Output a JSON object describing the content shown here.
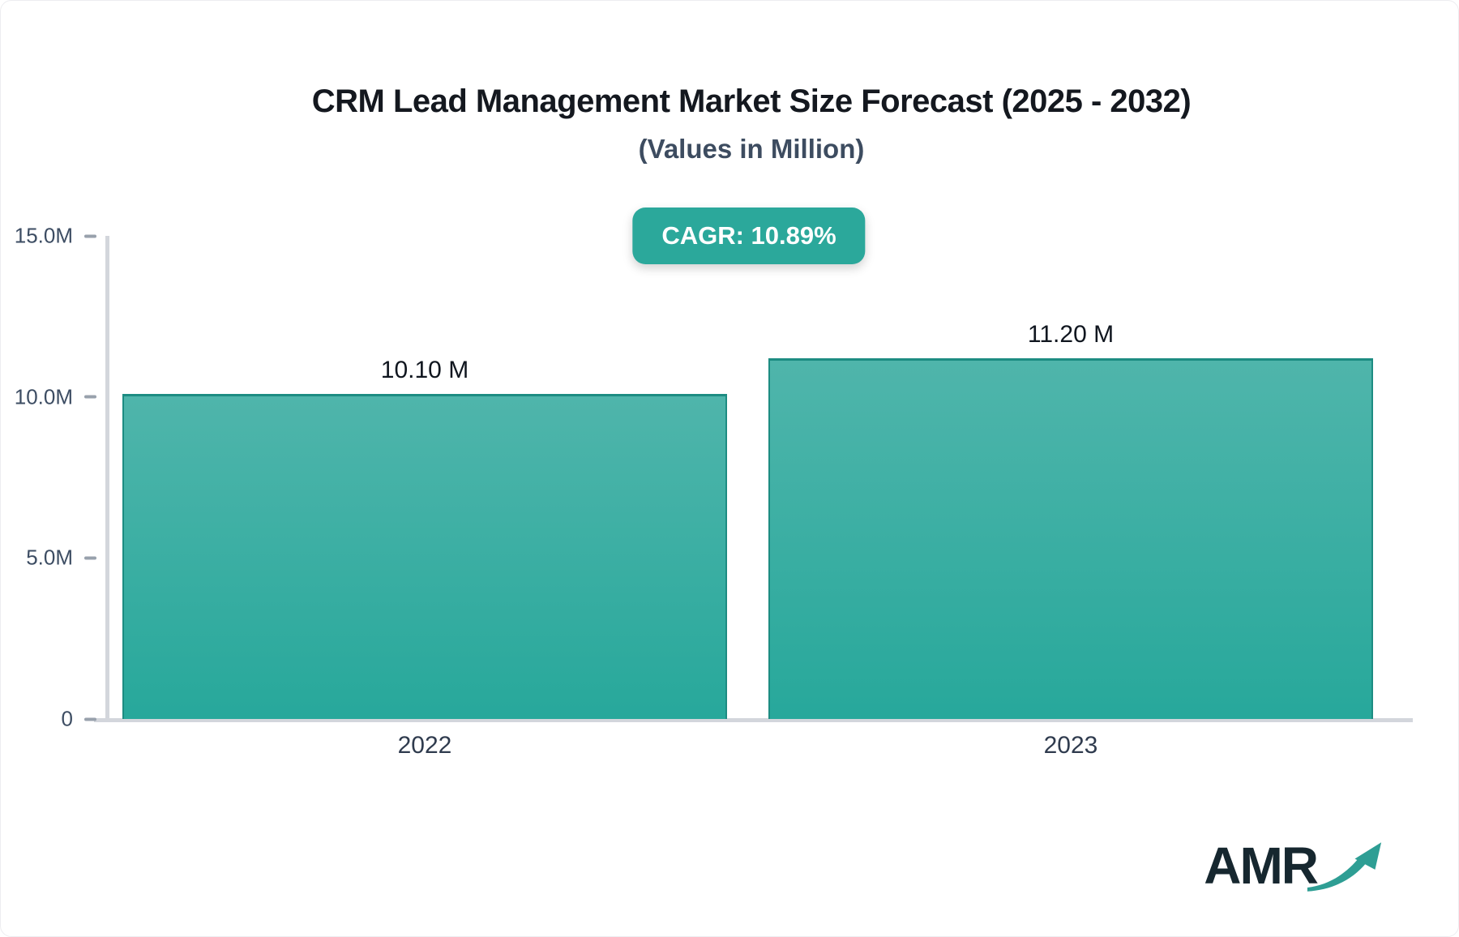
{
  "title": "CRM Lead Management Market Size Forecast (2025 - 2032)",
  "subtitle": "(Values in Million)",
  "badge": {
    "label": "CAGR: 10.89%"
  },
  "logo": {
    "text": "AMR",
    "arrow_icon": "growth-arrow-icon"
  },
  "colors": {
    "accent_teal": "#2BA89B",
    "badge_bg": "#2BA89B",
    "badge_text": "#FFFFFF",
    "bar_gradient_top": "#4FB5AB",
    "bar_gradient_bottom": "#27A89B",
    "bar_border": "#1D8C82",
    "title_text": "#14181F",
    "subtitle_text": "#3D4C60",
    "tick_text": "#3D4D63",
    "tick_dash": "#98A1AC",
    "axis_line": "#D3D6DC",
    "category_text": "#2F3B4E",
    "value_label_text": "#10161F",
    "logo_text": "#16272F",
    "logo_arrow": "#2E9E94"
  },
  "chart_data": {
    "type": "bar",
    "title": "CRM Lead Management Market Size Forecast (2025 - 2032)",
    "subtitle": "(Values in Million)",
    "annotation": "CAGR: 10.89%",
    "categories": [
      "2022",
      "2023"
    ],
    "values": [
      10.1,
      11.2
    ],
    "bar_labels": [
      "10.10 M",
      "11.20 M"
    ],
    "xlabel": "",
    "ylabel": "",
    "unit": "Million",
    "ylim": [
      0,
      15
    ],
    "yticks": [
      {
        "label": "15.0M",
        "value": 15
      },
      {
        "label": "10.0M",
        "value": 10
      },
      {
        "label": "5.0M",
        "value": 5
      },
      {
        "label": "0",
        "value": 0
      }
    ],
    "grid": false,
    "legend": false
  }
}
